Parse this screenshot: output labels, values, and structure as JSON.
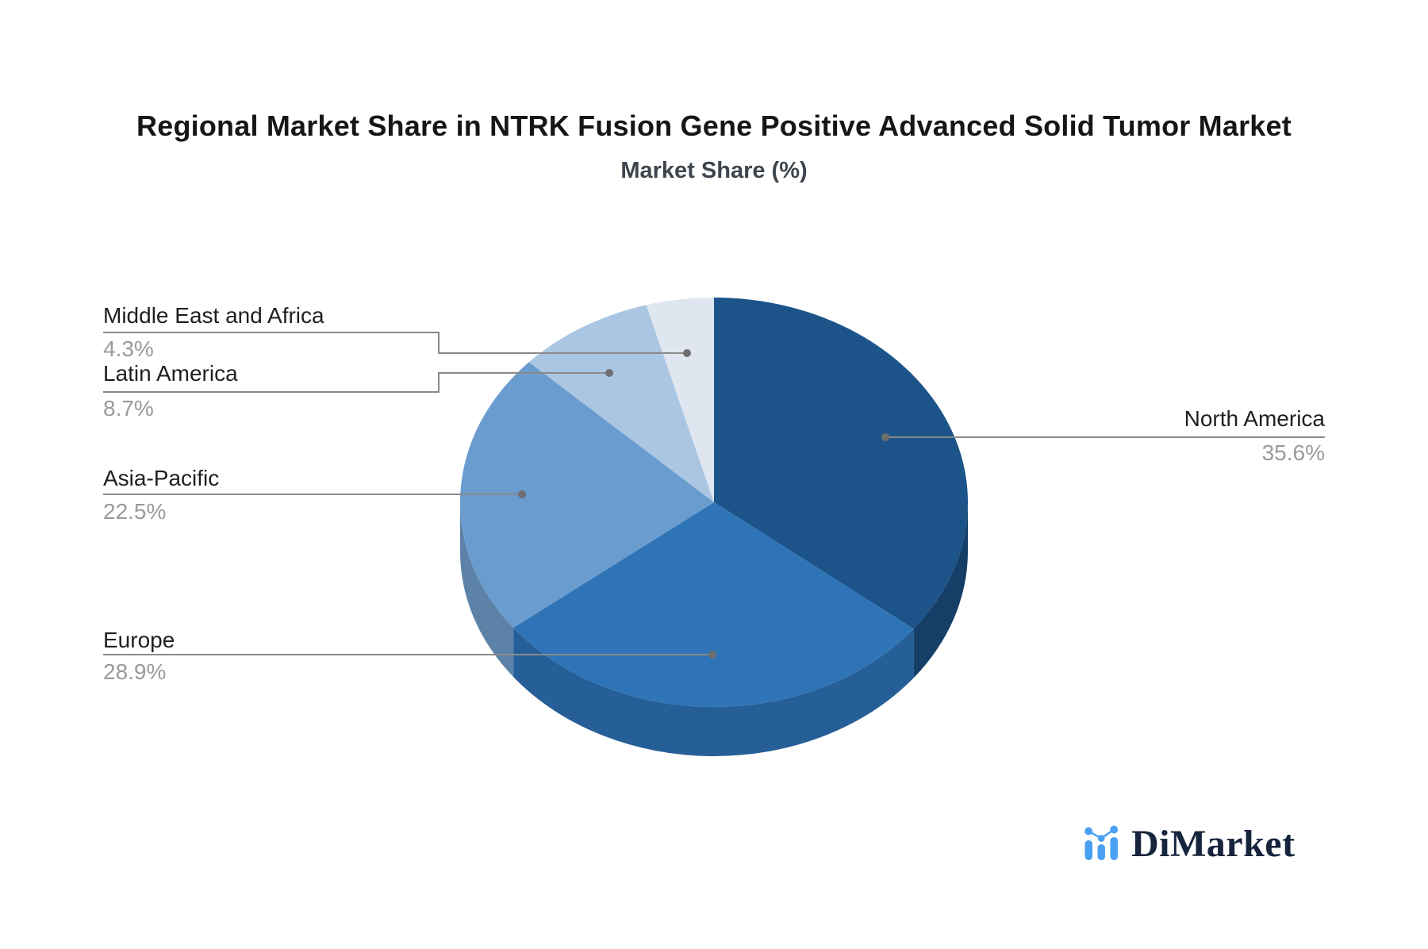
{
  "title": "Regional Market Share in NTRK Fusion Gene Positive Advanced Solid Tumor Market",
  "subtitle": "Market Share (%)",
  "logo": {
    "text": "DiMarket"
  },
  "chart_data": {
    "type": "pie",
    "style": "3d",
    "title": "Regional Market Share in NTRK Fusion Gene Positive Advanced Solid Tumor Market",
    "subtitle": "Market Share (%)",
    "categories": [
      "North America",
      "Europe",
      "Asia-Pacific",
      "Latin America",
      "Middle East and Africa"
    ],
    "values": [
      35.6,
      28.9,
      22.5,
      8.7,
      4.3
    ],
    "display_values": [
      "35.6%",
      "28.9%",
      "22.5%",
      "8.7%",
      "4.3%"
    ],
    "start_angle_deg": 0,
    "direction": "clockwise",
    "legend_position": "leader-labels",
    "colors_top": [
      "#1c548a",
      "#2e74b7",
      "#6b9ccf",
      "#abc6e2",
      "#dfe6ef"
    ],
    "colors_side": [
      "#153f66",
      "#265f97",
      "#5c82a8",
      "#8fa9c4",
      "#bcc8d6"
    ],
    "leader_line_color": "#8a8a8a",
    "leader_dot_color": "#6f6f6f",
    "label_color": "#1f1f1f",
    "value_color": "#9a9a9a"
  }
}
